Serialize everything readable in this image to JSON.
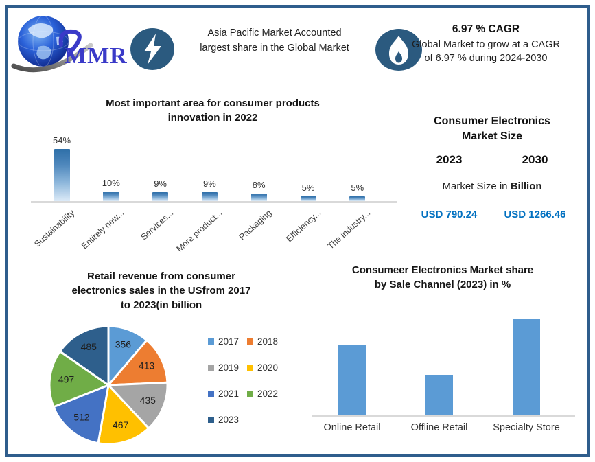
{
  "frame": {
    "border_color": "#2F5D8C",
    "background": "#FFFFFF"
  },
  "header": {
    "logo": {
      "text": "MMR",
      "icon": "globe-swoosh",
      "text_color": "#3A3AC8"
    },
    "highlight": {
      "icon": "lightning-bolt",
      "badge_color": "#2B5A7F",
      "text": "Asia Pacific Market Accounted largest share in the Global Market"
    },
    "cagr": {
      "icon": "flame",
      "badge_color": "#2B5A7F",
      "title": "6.97 % CAGR",
      "text": "Global Market to grow at a CAGR of 6.97 % during 2024-2030"
    }
  },
  "market_size_panel": {
    "title_lines": [
      "Consumer Electronics",
      "Market Size"
    ],
    "years": [
      "2023",
      "2030"
    ],
    "caption_prefix": "Market Size in ",
    "caption_bold": "Billion",
    "values": [
      "USD 790.24",
      "USD 1266.46"
    ],
    "value_color": "#0070C0"
  },
  "chart_data": [
    {
      "id": "innovation",
      "type": "bar",
      "title": "Most important area for consumer products innovation in 2022",
      "title_lines": [
        "Most important area for consumer products",
        "innovation in 2022"
      ],
      "categories": [
        "Sustainability",
        "Entirely new...",
        "Services...",
        "More product...",
        "Packaging",
        "Efficiency...",
        "The industry..."
      ],
      "values": [
        54,
        10,
        9,
        9,
        8,
        5,
        5
      ],
      "value_suffix": "%",
      "ylim": [
        0,
        60
      ],
      "grid": false,
      "axis_color": "#D9D9D9",
      "bar_gradient_top": "#2E6FA8",
      "bar_gradient_bottom": "#DCEAF7"
    },
    {
      "id": "retail-pie",
      "type": "pie",
      "title": "Retail revenue from consumer electronics sales in the USfrom 2017 to 2023(in billion",
      "title_lines": [
        "Retail revenue from consumer",
        "electronics sales in the USfrom 2017",
        "to 2023(in billion"
      ],
      "categories": [
        "2017",
        "2018",
        "2019",
        "2020",
        "2021",
        "2022",
        "2023"
      ],
      "values": [
        356,
        413,
        435,
        467,
        512,
        497,
        485
      ],
      "colors": [
        "#5B9BD5",
        "#ED7D31",
        "#A5A5A5",
        "#FFC000",
        "#4472C4",
        "#70AD47",
        "#2E5F8C"
      ],
      "legend_position": "right",
      "start_angle_deg": 0,
      "direction": "clockwise"
    },
    {
      "id": "sale-channel",
      "type": "bar",
      "title": "Consumeer Electronics Market share by Sale Channel (2023) in %",
      "title_lines": [
        "Consumeer Electronics Market share",
        "by Sale Channel (2023) in %"
      ],
      "categories": [
        "Online Retail",
        "Offline Retail",
        "Specialty Store"
      ],
      "values": [
        33,
        19,
        45
      ],
      "ylim": [
        0,
        50
      ],
      "grid": false,
      "axis_color": "#D9D9D9",
      "bar_color": "#5B9BD5"
    }
  ]
}
